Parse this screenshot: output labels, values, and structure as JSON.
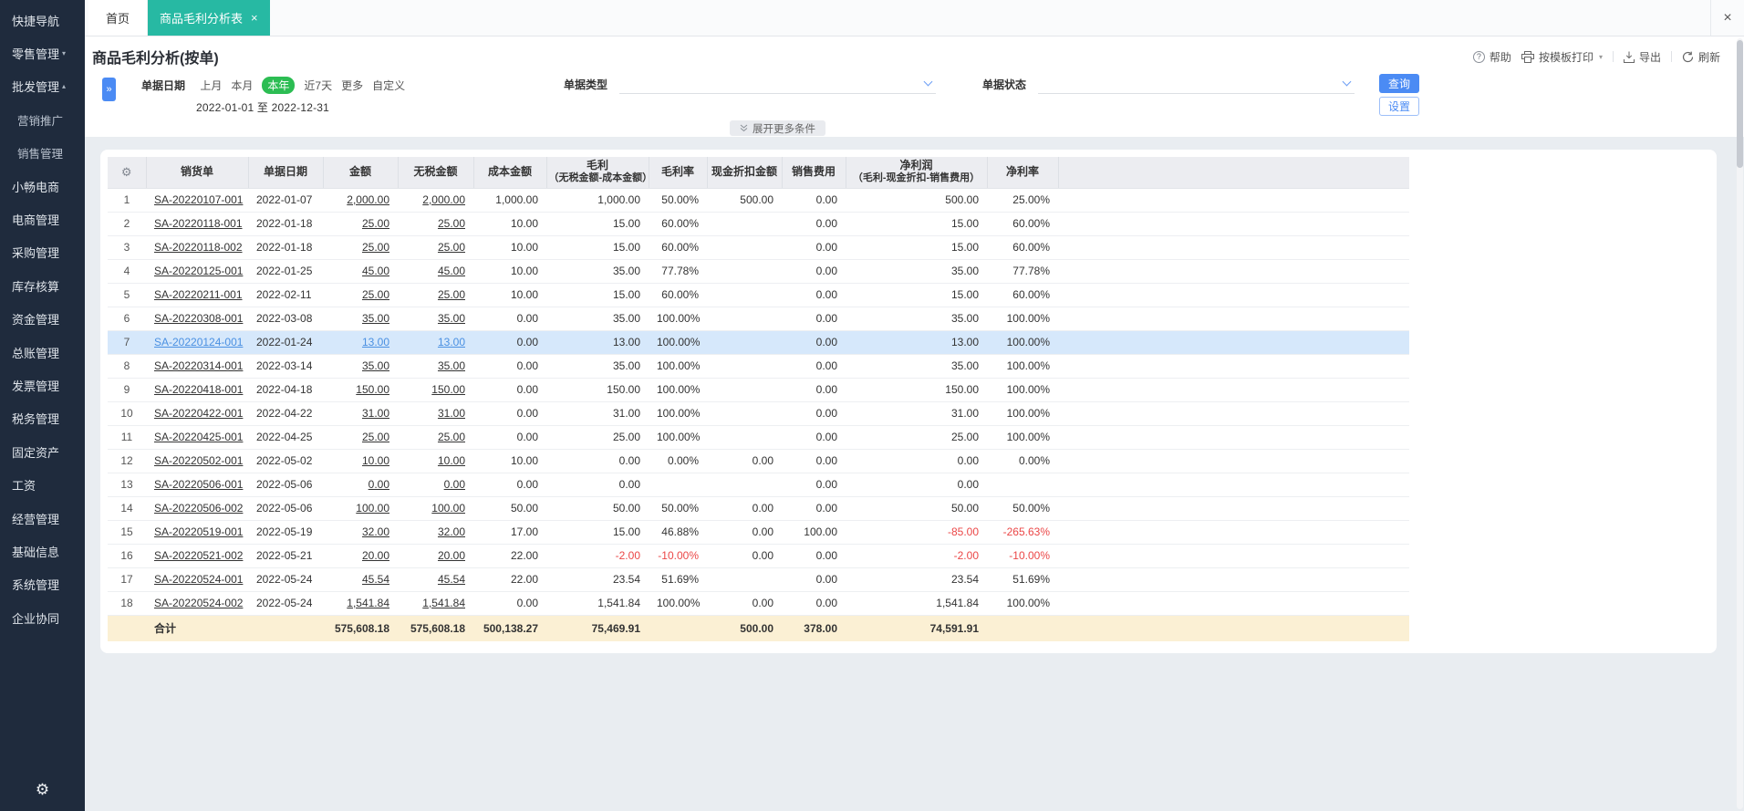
{
  "icons": {
    "gear": "⚙",
    "close": "×",
    "tab_close": "×",
    "collapse_right": "»",
    "caret_down": "▾",
    "caret_up": "▴",
    "help_qmark": "?"
  },
  "sidebar": {
    "items": [
      {
        "label": "快捷导航"
      },
      {
        "label": "零售管理",
        "caret": "down"
      },
      {
        "label": "批发管理",
        "caret": "up"
      },
      {
        "label": "营销推广",
        "sub": true
      },
      {
        "label": "销售管理",
        "sub": true
      },
      {
        "label": "小畅电商"
      },
      {
        "label": "电商管理"
      },
      {
        "label": "采购管理"
      },
      {
        "label": "库存核算"
      },
      {
        "label": "资金管理"
      },
      {
        "label": "总账管理"
      },
      {
        "label": "发票管理"
      },
      {
        "label": "税务管理"
      },
      {
        "label": "固定资产"
      },
      {
        "label": "工资"
      },
      {
        "label": "经营管理"
      },
      {
        "label": "基础信息"
      },
      {
        "label": "系统管理"
      },
      {
        "label": "企业协同"
      }
    ]
  },
  "tabbar": {
    "home_tab": "首页",
    "active_tab": "商品毛利分析表"
  },
  "toolbar": {
    "title": "商品毛利分析(按单)",
    "help": "帮助",
    "print": "按模板打印",
    "export": "导出",
    "refresh": "刷新"
  },
  "filters": {
    "date_label": "单据日期",
    "date_quick": [
      "上月",
      "本月",
      "本年",
      "近7天",
      "更多",
      "自定义"
    ],
    "date_selected_index": 2,
    "date_range": "2022-01-01 至 2022-12-31",
    "doc_type_label": "单据类型",
    "doc_status_label": "单据状态",
    "query_button": "查询",
    "settings_button": "设置",
    "expand_more": "展开更多条件"
  },
  "table": {
    "columns": [
      {
        "label": "销货单"
      },
      {
        "label": "单据日期"
      },
      {
        "label": "金额"
      },
      {
        "label": "无税金额"
      },
      {
        "label": "成本金额"
      },
      {
        "label": "毛利",
        "sub": "（无税金额-成本金额）"
      },
      {
        "label": "毛利率"
      },
      {
        "label": "现金折扣金额"
      },
      {
        "label": "销售费用"
      },
      {
        "label": "净利润",
        "sub": "（毛利-现金折扣-销售费用）"
      },
      {
        "label": "净利率"
      }
    ],
    "rows": [
      {
        "num": "1",
        "order": "SA-20220107-001",
        "date": "2022-01-07",
        "amount": "2,000.00",
        "tax_free": "2,000.00",
        "cost": "1,000.00",
        "gross": "1,000.00",
        "gross_rate": "50.00%",
        "cash_discount": "500.00",
        "expense": "0.00",
        "net": "500.00",
        "net_rate": "25.00%"
      },
      {
        "num": "2",
        "order": "SA-20220118-001",
        "date": "2022-01-18",
        "amount": "25.00",
        "tax_free": "25.00",
        "cost": "10.00",
        "gross": "15.00",
        "gross_rate": "60.00%",
        "cash_discount": "",
        "expense": "0.00",
        "net": "15.00",
        "net_rate": "60.00%"
      },
      {
        "num": "3",
        "order": "SA-20220118-002",
        "date": "2022-01-18",
        "amount": "25.00",
        "tax_free": "25.00",
        "cost": "10.00",
        "gross": "15.00",
        "gross_rate": "60.00%",
        "cash_discount": "",
        "expense": "0.00",
        "net": "15.00",
        "net_rate": "60.00%"
      },
      {
        "num": "4",
        "order": "SA-20220125-001",
        "date": "2022-01-25",
        "amount": "45.00",
        "tax_free": "45.00",
        "cost": "10.00",
        "gross": "35.00",
        "gross_rate": "77.78%",
        "cash_discount": "",
        "expense": "0.00",
        "net": "35.00",
        "net_rate": "77.78%"
      },
      {
        "num": "5",
        "order": "SA-20220211-001",
        "date": "2022-02-11",
        "amount": "25.00",
        "tax_free": "25.00",
        "cost": "10.00",
        "gross": "15.00",
        "gross_rate": "60.00%",
        "cash_discount": "",
        "expense": "0.00",
        "net": "15.00",
        "net_rate": "60.00%"
      },
      {
        "num": "6",
        "order": "SA-20220308-001",
        "date": "2022-03-08",
        "amount": "35.00",
        "tax_free": "35.00",
        "cost": "0.00",
        "gross": "35.00",
        "gross_rate": "100.00%",
        "cash_discount": "",
        "expense": "0.00",
        "net": "35.00",
        "net_rate": "100.00%"
      },
      {
        "num": "7",
        "order": "SA-20220124-001",
        "date": "2022-01-24",
        "amount": "13.00",
        "tax_free": "13.00",
        "cost": "0.00",
        "gross": "13.00",
        "gross_rate": "100.00%",
        "cash_discount": "",
        "expense": "0.00",
        "net": "13.00",
        "net_rate": "100.00%",
        "highlight": true
      },
      {
        "num": "8",
        "order": "SA-20220314-001",
        "date": "2022-03-14",
        "amount": "35.00",
        "tax_free": "35.00",
        "cost": "0.00",
        "gross": "35.00",
        "gross_rate": "100.00%",
        "cash_discount": "",
        "expense": "0.00",
        "net": "35.00",
        "net_rate": "100.00%"
      },
      {
        "num": "9",
        "order": "SA-20220418-001",
        "date": "2022-04-18",
        "amount": "150.00",
        "tax_free": "150.00",
        "cost": "0.00",
        "gross": "150.00",
        "gross_rate": "100.00%",
        "cash_discount": "",
        "expense": "0.00",
        "net": "150.00",
        "net_rate": "100.00%"
      },
      {
        "num": "10",
        "order": "SA-20220422-001",
        "date": "2022-04-22",
        "amount": "31.00",
        "tax_free": "31.00",
        "cost": "0.00",
        "gross": "31.00",
        "gross_rate": "100.00%",
        "cash_discount": "",
        "expense": "0.00",
        "net": "31.00",
        "net_rate": "100.00%"
      },
      {
        "num": "11",
        "order": "SA-20220425-001",
        "date": "2022-04-25",
        "amount": "25.00",
        "tax_free": "25.00",
        "cost": "0.00",
        "gross": "25.00",
        "gross_rate": "100.00%",
        "cash_discount": "",
        "expense": "0.00",
        "net": "25.00",
        "net_rate": "100.00%"
      },
      {
        "num": "12",
        "order": "SA-20220502-001",
        "date": "2022-05-02",
        "amount": "10.00",
        "tax_free": "10.00",
        "cost": "10.00",
        "gross": "0.00",
        "gross_rate": "0.00%",
        "cash_discount": "0.00",
        "expense": "0.00",
        "net": "0.00",
        "net_rate": "0.00%"
      },
      {
        "num": "13",
        "order": "SA-20220506-001",
        "date": "2022-05-06",
        "amount": "0.00",
        "tax_free": "0.00",
        "cost": "0.00",
        "gross": "0.00",
        "gross_rate": "",
        "cash_discount": "",
        "expense": "0.00",
        "net": "0.00",
        "net_rate": ""
      },
      {
        "num": "14",
        "order": "SA-20220506-002",
        "date": "2022-05-06",
        "amount": "100.00",
        "tax_free": "100.00",
        "cost": "50.00",
        "gross": "50.00",
        "gross_rate": "50.00%",
        "cash_discount": "0.00",
        "expense": "0.00",
        "net": "50.00",
        "net_rate": "50.00%"
      },
      {
        "num": "15",
        "order": "SA-20220519-001",
        "date": "2022-05-19",
        "amount": "32.00",
        "tax_free": "32.00",
        "cost": "17.00",
        "gross": "15.00",
        "gross_rate": "46.88%",
        "cash_discount": "0.00",
        "expense": "100.00",
        "net": "-85.00",
        "net_rate": "-265.63%"
      },
      {
        "num": "16",
        "order": "SA-20220521-002",
        "date": "2022-05-21",
        "amount": "20.00",
        "tax_free": "20.00",
        "cost": "22.00",
        "gross": "-2.00",
        "gross_rate": "-10.00%",
        "cash_discount": "0.00",
        "expense": "0.00",
        "net": "-2.00",
        "net_rate": "-10.00%"
      },
      {
        "num": "17",
        "order": "SA-20220524-001",
        "date": "2022-05-24",
        "amount": "45.54",
        "tax_free": "45.54",
        "cost": "22.00",
        "gross": "23.54",
        "gross_rate": "51.69%",
        "cash_discount": "",
        "expense": "0.00",
        "net": "23.54",
        "net_rate": "51.69%"
      },
      {
        "num": "18",
        "order": "SA-20220524-002",
        "date": "2022-05-24",
        "amount": "1,541.84",
        "tax_free": "1,541.84",
        "cost": "0.00",
        "gross": "1,541.84",
        "gross_rate": "100.00%",
        "cash_discount": "0.00",
        "expense": "0.00",
        "net": "1,541.84",
        "net_rate": "100.00%"
      }
    ],
    "total": {
      "label": "合计",
      "amount": "575,608.18",
      "tax_free": "575,608.18",
      "cost": "500,138.27",
      "gross": "75,469.91",
      "gross_rate": "",
      "cash_discount": "500.00",
      "expense": "378.00",
      "net": "74,591.91",
      "net_rate": ""
    }
  }
}
